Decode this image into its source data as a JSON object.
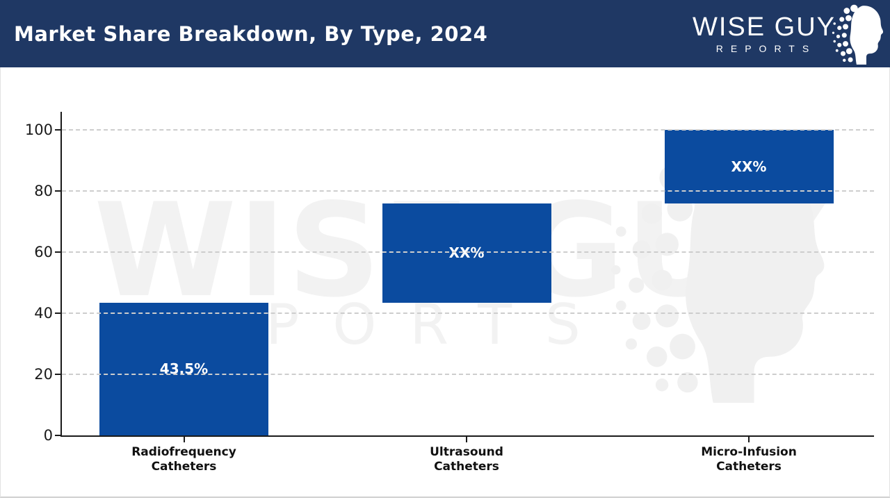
{
  "header": {
    "title": "Market Share Breakdown, By Type, 2024",
    "logo": {
      "line1": "WISE GUY",
      "line2": "REPORTS"
    }
  },
  "watermark": {
    "line1": "WISE GUY",
    "line2": "REPORTS"
  },
  "colors": {
    "header_bg": "#1F3864",
    "bar": "#0B4B9F",
    "bar_label": "#FFFFFF",
    "grid": "#CDCDCD",
    "axis": "#1A1A1A",
    "watermark": "#F2F2F2"
  },
  "chart_data": {
    "type": "bar",
    "variant": "waterfall",
    "title": "Market Share Breakdown, By Type, 2024",
    "categories": [
      [
        "Radiofrequency",
        "Catheters"
      ],
      [
        "Ultrasound",
        "Catheters"
      ],
      [
        "Micro-Infusion",
        "Catheters"
      ]
    ],
    "bars": [
      {
        "start": 0,
        "end": 43.5,
        "label": "43.5%"
      },
      {
        "start": 43.5,
        "end": 76,
        "label": "XX%"
      },
      {
        "start": 76,
        "end": 100,
        "label": "XX%"
      }
    ],
    "ylim": [
      0,
      100
    ],
    "yticks": [
      0,
      20,
      40,
      60,
      80,
      100
    ],
    "grid": {
      "horizontal": true,
      "style": "dashed"
    },
    "legend": null,
    "xlabel": "",
    "ylabel": ""
  }
}
